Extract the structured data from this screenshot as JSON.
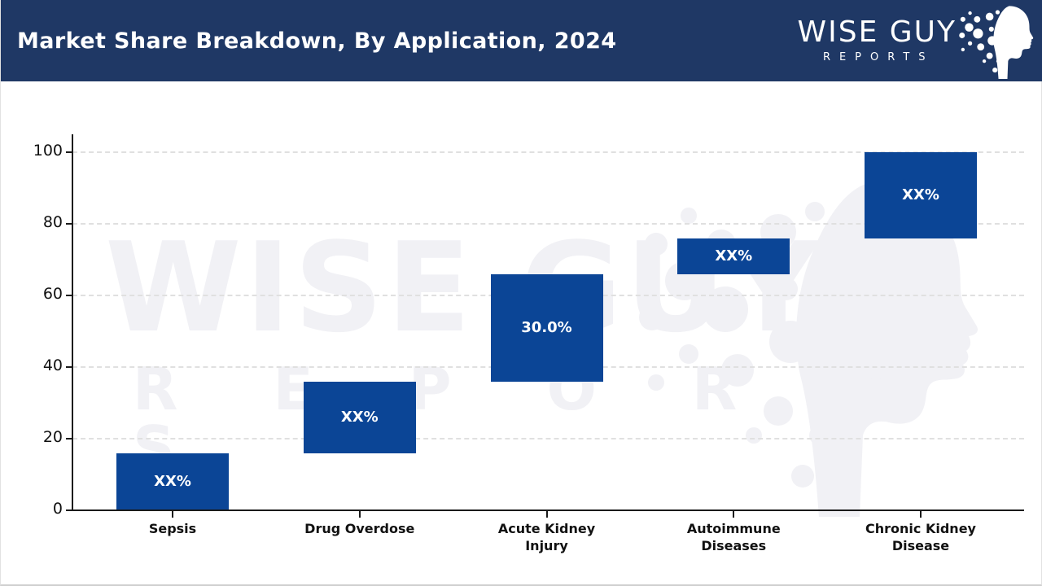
{
  "header": {
    "title": "Market Share Breakdown, By Application, 2024",
    "logo": {
      "line1": "WISE GUY",
      "line2": "REPORTS"
    }
  },
  "watermark": {
    "line1": "WISE GUY",
    "line2": "R E P O R T S"
  },
  "colors": {
    "header_bg": "#1F3865",
    "bar": "#0B4596",
    "grid": "#E0E0E0",
    "axis": "#1A1A1A",
    "watermark": "#F1F1F5"
  },
  "chart_data": {
    "type": "bar",
    "subtype": "floating-waterfall",
    "title": "Market Share Breakdown, By Application, 2024",
    "categories": [
      "Sepsis",
      "Drug Overdose",
      "Acute Kidney\nInjury",
      "Autoimmune\nDiseases",
      "Chronic Kidney\nDisease"
    ],
    "bars": [
      {
        "category": "Sepsis",
        "start": 0,
        "end": 16,
        "label": "XX%"
      },
      {
        "category": "Drug Overdose",
        "start": 16,
        "end": 36,
        "label": "XX%"
      },
      {
        "category": "Acute Kidney Injury",
        "start": 36,
        "end": 66,
        "label": "30.0%"
      },
      {
        "category": "Autoimmune Diseases",
        "start": 66,
        "end": 76,
        "label": "XX%"
      },
      {
        "category": "Chronic Kidney Disease",
        "start": 76,
        "end": 100,
        "label": "XX%"
      }
    ],
    "xlabel": "",
    "ylabel": "",
    "ylim": [
      0,
      100
    ],
    "yticks": [
      0,
      20,
      40,
      60,
      80,
      100
    ],
    "grid": "horizontal dashed",
    "legend": "none",
    "bar_color": "#0B4596"
  }
}
